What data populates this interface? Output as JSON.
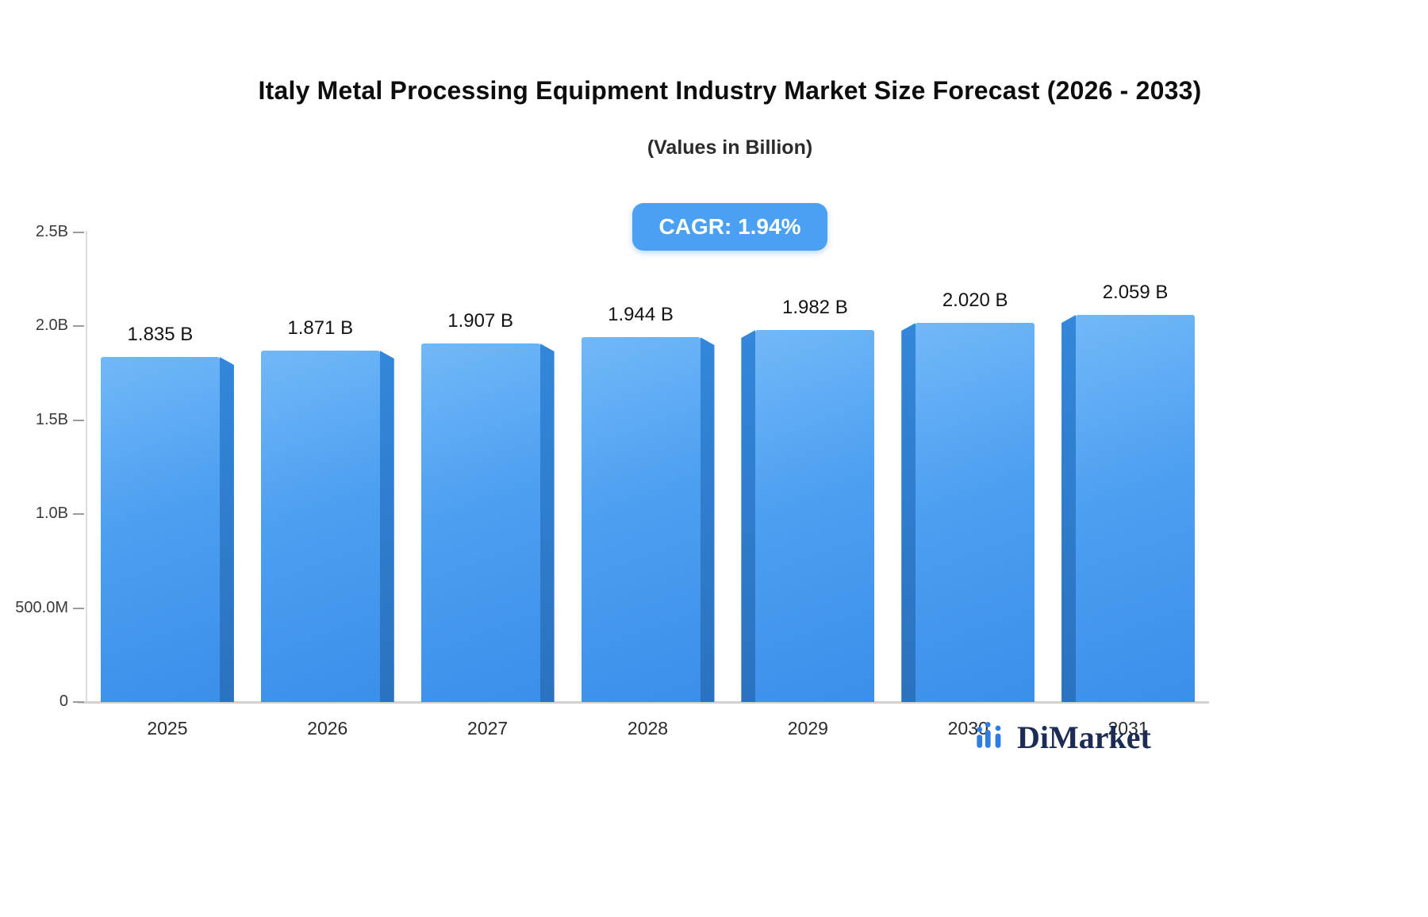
{
  "header": {
    "title": "Italy Metal Processing Equipment Industry Market Size Forecast (2026 - 2033)",
    "subtitle": "(Values in Billion)",
    "cagr_badge": "CAGR: 1.94%"
  },
  "chart_data": {
    "type": "bar",
    "title": "Italy Metal Processing Equipment Industry Market Size Forecast (2026 - 2033)",
    "subtitle": "(Values in Billion)",
    "categories": [
      "2025",
      "2026",
      "2027",
      "2028",
      "2029",
      "2030",
      "2031"
    ],
    "values": [
      1.835,
      1.871,
      1.907,
      1.944,
      1.982,
      2.02,
      2.059
    ],
    "value_labels": [
      "1.835 B",
      "1.871 B",
      "1.907 B",
      "1.944 B",
      "1.982 B",
      "2.020 B",
      "2.059 B"
    ],
    "xlabel": "",
    "ylabel": "",
    "y_ticks": [
      "2.5B",
      "2.0B",
      "1.5B",
      "1.0B",
      "500.0M",
      "0"
    ],
    "ylim": [
      0,
      2.5
    ],
    "grid": false,
    "legend_position": "none",
    "colors": {
      "bar_face_top": "#72b8f8",
      "bar_face_bottom": "#3b8fea",
      "bar_side": "#2b72bf",
      "badge_background": "#4aa1f3",
      "badge_text": "#ffffff",
      "axis": "#d2d2d2",
      "text": "#141414"
    },
    "annotations": [
      "CAGR: 1.94%"
    ]
  },
  "footer": {
    "brand": "DiMarket"
  },
  "icons": {
    "brand_icon": "bar-chart-dots-icon"
  }
}
